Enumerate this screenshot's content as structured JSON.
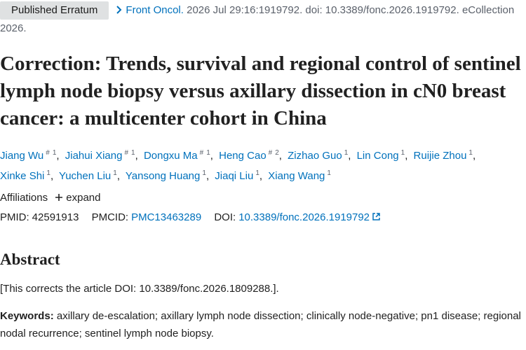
{
  "header": {
    "badge": "Published Erratum",
    "journal": "Front Oncol.",
    "citation": "2026 Jul 29:16:1919792. doi: 10.3389/fonc.2026.1919792. eCollection 2026."
  },
  "title": "Correction: Trends, survival and regional control of sentinel lymph node biopsy versus axillary dissection in cN0 breast cancer: a multicenter cohort in China",
  "authors": [
    {
      "name": "Jiang Wu",
      "equal": "#",
      "aff": "1"
    },
    {
      "name": "Jiahui Xiang",
      "equal": "#",
      "aff": "1"
    },
    {
      "name": "Dongxu Ma",
      "equal": "#",
      "aff": "1"
    },
    {
      "name": "Heng Cao",
      "equal": "#",
      "aff": "2"
    },
    {
      "name": "Zizhao Guo",
      "aff": "1"
    },
    {
      "name": "Lin Cong",
      "aff": "1"
    },
    {
      "name": "Ruijie Zhou",
      "aff": "1"
    },
    {
      "name": "Xinke Shi",
      "aff": "1"
    },
    {
      "name": "Yuchen Liu",
      "aff": "1"
    },
    {
      "name": "Yansong Huang",
      "aff": "1"
    },
    {
      "name": "Jiaqi Liu",
      "aff": "1"
    },
    {
      "name": "Xiang Wang",
      "aff": "1"
    }
  ],
  "affiliations": {
    "label": "Affiliations",
    "toggle": "expand"
  },
  "identifiers": {
    "pmid_label": "PMID:",
    "pmid": "42591913",
    "pmcid_label": "PMCID:",
    "pmcid": "PMC13463289",
    "doi_label": "DOI:",
    "doi": "10.3389/fonc.2026.1919792"
  },
  "abstract": {
    "heading": "Abstract",
    "text": "[This corrects the article DOI: 10.3389/fonc.2026.1809288.]."
  },
  "keywords": {
    "label": "Keywords:",
    "text": "axillary de-escalation; axillary lymph node dissection; clinically node-negative; pn1 disease; regional nodal recurrence; sentinel lymph node biopsy."
  }
}
